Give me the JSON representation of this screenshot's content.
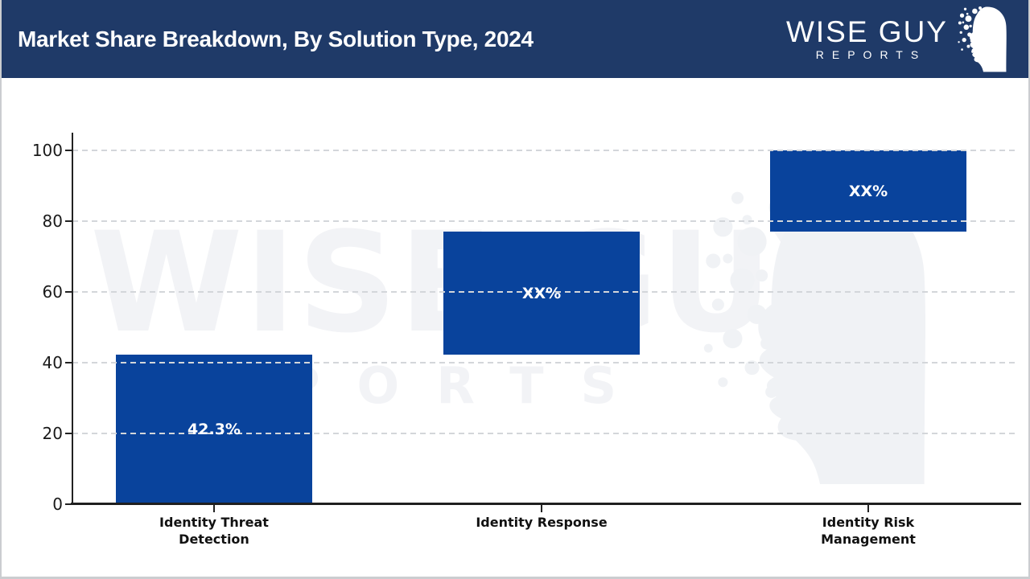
{
  "header": {
    "title": "Market Share Breakdown, By Solution Type, 2024",
    "logo": {
      "line1": "WISE GUY",
      "line2": "REPORTS"
    },
    "bg_color": "#1f3a68"
  },
  "watermark": {
    "line1": "WISE GUY",
    "line2": "REPORTS"
  },
  "chart_data": {
    "type": "bar",
    "subtype": "waterfall",
    "title": "Market Share Breakdown, By Solution Type, 2024",
    "categories": [
      "Identity Threat Detection",
      "Identity Response",
      "Identity Risk Management"
    ],
    "category_label_lines": [
      [
        "Identity Threat",
        "Detection"
      ],
      [
        "Identity Response"
      ],
      [
        "Identity Risk",
        "Management"
      ]
    ],
    "bars": [
      {
        "category": "Identity Threat Detection",
        "start": 0,
        "end": 42.3,
        "label": "42.3%"
      },
      {
        "category": "Identity Response",
        "start": 42.3,
        "end": 77,
        "label": "XX%"
      },
      {
        "category": "Identity Risk Management",
        "start": 77,
        "end": 100,
        "label": "XX%"
      }
    ],
    "ylim": [
      0,
      100
    ],
    "yticks": [
      0,
      20,
      40,
      60,
      80,
      100
    ],
    "xlabel": "",
    "ylabel": "",
    "grid": "horizontal-dashed",
    "legend": "none",
    "bar_color": "#09439c"
  },
  "colors": {
    "header_bg": "#1f3a68",
    "bar": "#09439c",
    "gridline": "#d3d6da",
    "axis": "#222222",
    "watermark": "#f2f3f6",
    "page_bg": "#ffffff"
  }
}
